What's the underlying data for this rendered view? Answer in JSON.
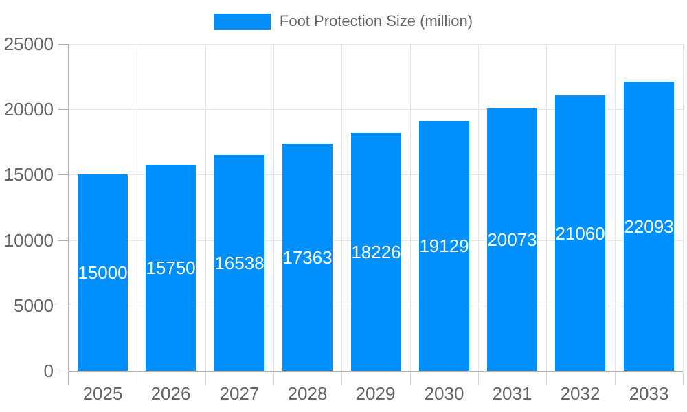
{
  "chart_data": {
    "type": "bar",
    "title": "Foot Protection Size (million)",
    "categories": [
      "2025",
      "2026",
      "2027",
      "2028",
      "2029",
      "2030",
      "2031",
      "2032",
      "2033"
    ],
    "series": [
      {
        "name": "Foot Protection Size (million)",
        "values": [
          15000,
          15750,
          16538,
          17363,
          18226,
          19129,
          20073,
          21060,
          22093
        ]
      }
    ],
    "data_labels": [
      "15000",
      "15750",
      "16538",
      "17363",
      "18226",
      "19129",
      "20073",
      "21060",
      "22093"
    ],
    "xlabel": "",
    "ylabel": "",
    "ylim": [
      0,
      25000
    ],
    "yticks": [
      0,
      5000,
      10000,
      15000,
      20000,
      25000
    ],
    "ytick_labels": [
      "0",
      "5000",
      "10000",
      "15000",
      "20000",
      "25000"
    ],
    "grid": "on",
    "legend_position": "top-center",
    "colors": {
      "bar": "#0190fb",
      "bar_label_text": "#ffffff",
      "axis_text": "#666666",
      "legend_text": "#666666",
      "gridline": "#e6e6e6",
      "axis_line": "#b3b3b3",
      "background": "#ffffff"
    }
  }
}
